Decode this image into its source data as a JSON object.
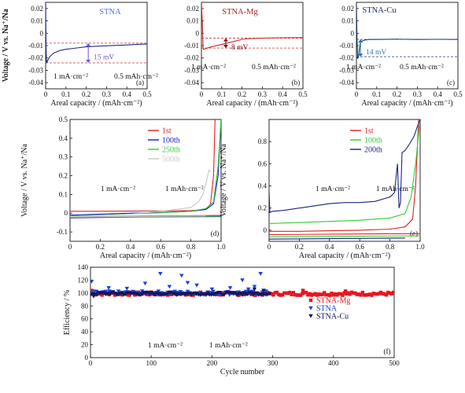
{
  "chart_data": [
    {
      "id": "a",
      "type": "line",
      "panel_label": "(a)",
      "title": "STNA",
      "xlabel": "Areal capacity / (mAh·cm⁻²)",
      "ylabel": "Voltage / V vs. Na⁺/Na",
      "xlim": [
        0,
        0.5
      ],
      "ylim": [
        -0.045,
        0.025
      ],
      "xticks": [
        "0",
        "0.1",
        "0.2",
        "0.3",
        "0.4",
        "0.5"
      ],
      "yticks": [
        "-0.04",
        "-0.03",
        "-0.02",
        "-0.01",
        "0",
        "0.01",
        "0.02"
      ],
      "condition_current": "1 mA·cm⁻²",
      "condition_capacity": "0.5 mAh·cm⁻²",
      "colors": {
        "series": "#1f2d8a",
        "title": "#5b6fd6",
        "annotation": "#6a5acd",
        "guide": "#cc3333"
      },
      "guides": [
        -0.008,
        -0.024
      ],
      "annotation": {
        "text": "15 mV",
        "x": 0.21,
        "y_top": -0.008,
        "y_bottom": -0.024
      },
      "series": [
        {
          "x": [
            0,
            0.002,
            0.004,
            0.006,
            0.01,
            0.02,
            0.04,
            0.07,
            0.1,
            0.15,
            0.2,
            0.25,
            0.3,
            0.35,
            0.4,
            0.45,
            0.5
          ],
          "y": [
            0.025,
            -0.01,
            -0.022,
            -0.024,
            -0.022,
            -0.019,
            -0.016,
            -0.014,
            -0.013,
            -0.012,
            -0.011,
            -0.0105,
            -0.0102,
            -0.0098,
            -0.0095,
            -0.009,
            -0.0088
          ]
        }
      ]
    },
    {
      "id": "b",
      "type": "line",
      "panel_label": "(b)",
      "title": "STNA-Mg",
      "xlabel": "Areal capacity / (mAh·cm⁻²)",
      "ylabel": "Voltage / V vs. Na⁺/Na",
      "xlim": [
        0,
        0.5
      ],
      "ylim": [
        -0.045,
        0.025
      ],
      "xticks": [
        "0",
        "0.1",
        "0.2",
        "0.3",
        "0.4",
        "0.5"
      ],
      "yticks": [
        "-0.04",
        "-0.03",
        "-0.02",
        "-0.01",
        "0",
        "0.01",
        "0.02"
      ],
      "condition_current": "1 mA·cm⁻²",
      "condition_capacity": "0.5 mAh·cm⁻²",
      "colors": {
        "series": "#d62728",
        "title": "#b22222",
        "annotation": "#8b0000",
        "guide": "#cc3333"
      },
      "guides": [
        -0.004,
        -0.012
      ],
      "annotation": {
        "text": "8 mV",
        "x": 0.12,
        "y_top": -0.004,
        "y_bottom": -0.012
      },
      "series": [
        {
          "x": [
            0,
            0.005,
            0.008,
            0.01,
            0.02,
            0.05,
            0.1,
            0.15,
            0.2,
            0.25,
            0.3,
            0.35,
            0.4,
            0.45,
            0.5
          ],
          "y": [
            0.025,
            0.006,
            -0.012,
            -0.013,
            -0.0125,
            -0.011,
            -0.009,
            -0.007,
            -0.005,
            -0.0042,
            -0.004,
            -0.0038,
            -0.0037,
            -0.0036,
            -0.0035
          ]
        }
      ]
    },
    {
      "id": "c",
      "type": "line",
      "panel_label": "(c)",
      "title": "STNA-Cu",
      "xlabel": "Areal capacity / (mAh·cm⁻²)",
      "ylabel": "Voltage / V vs. Na⁺/Na",
      "xlim": [
        0,
        0.5
      ],
      "ylim": [
        -0.045,
        0.025
      ],
      "xticks": [
        "0",
        "0.1",
        "0.2",
        "0.3",
        "0.4",
        "0.5"
      ],
      "yticks": [
        "-0.04",
        "-0.03",
        "-0.02",
        "-0.01",
        "0",
        "0.01",
        "0.02"
      ],
      "condition_current": "1 mA·cm⁻²",
      "condition_capacity": "0.5 mAh·cm⁻²",
      "colors": {
        "series": "#1f3a6e",
        "title": "#1a2a5e",
        "annotation": "#1f77b4",
        "guide": "#1f3a6e"
      },
      "guides": [
        -0.005,
        -0.019
      ],
      "annotation": {
        "text": "14 mV",
        "x": 0.02,
        "y_top": -0.005,
        "y_bottom": -0.019
      },
      "series": [
        {
          "x": [
            0,
            0.003,
            0.006,
            0.01,
            0.015,
            0.02,
            0.04,
            0.07,
            0.1,
            0.2,
            0.3,
            0.4,
            0.5
          ],
          "y": [
            0.025,
            -0.005,
            -0.02,
            -0.019,
            -0.012,
            -0.007,
            -0.0055,
            -0.005,
            -0.005,
            -0.0048,
            -0.005,
            -0.0049,
            -0.005
          ]
        }
      ]
    },
    {
      "id": "d",
      "type": "line",
      "panel_label": "(d)",
      "xlabel": "Areal capacity / (mAh·cm⁻²)",
      "ylabel": "Voltage / V vs. Na⁺/Na",
      "xlim": [
        0,
        1.0
      ],
      "ylim": [
        -0.15,
        0.5
      ],
      "xticks": [
        "0",
        "0.2",
        "0.4",
        "0.6",
        "0.8",
        "1.0"
      ],
      "yticks": [
        "-0.1",
        "0",
        "0.1",
        "0.2",
        "0.3",
        "0.4",
        "0.5"
      ],
      "condition_current": "1 mA·cm⁻²",
      "condition_capacity": "1 mAh·cm⁻²",
      "legend_position": "top-right",
      "series": [
        {
          "name": "1st",
          "color": "#e02020",
          "charge_x": [
            0,
            0.2,
            0.4,
            0.6,
            0.8,
            0.9,
            0.93,
            0.95,
            0.96
          ],
          "charge_y": [
            0.01,
            0.01,
            0.011,
            0.012,
            0.014,
            0.02,
            0.05,
            0.2,
            0.5
          ],
          "discharge_x": [
            0,
            0.5,
            1.0
          ],
          "discharge_y": [
            -0.02,
            -0.015,
            -0.012
          ]
        },
        {
          "name": "100th",
          "color": "#1a1ac8",
          "charge_x": [
            0,
            0.2,
            0.4,
            0.6,
            0.8,
            0.9,
            0.95,
            0.98,
            1.0
          ],
          "charge_y": [
            -0.01,
            -0.005,
            0.0,
            0.004,
            0.01,
            0.02,
            0.05,
            0.2,
            0.5
          ],
          "discharge_x": [
            0,
            0.5,
            1.0
          ],
          "discharge_y": [
            -0.025,
            -0.02,
            -0.018
          ]
        },
        {
          "name": "250th",
          "color": "#33cc33",
          "charge_x": [
            0,
            0.2,
            0.4,
            0.6,
            0.8,
            0.9,
            0.95,
            0.98,
            1.0
          ],
          "charge_y": [
            -0.015,
            -0.01,
            -0.004,
            0.002,
            0.01,
            0.025,
            0.06,
            0.25,
            0.5
          ],
          "discharge_x": [
            0,
            0.5,
            1.0
          ],
          "discharge_y": [
            -0.022,
            -0.018,
            -0.016
          ]
        },
        {
          "name": "500th",
          "color": "#c8c8c8",
          "charge_x": [
            0,
            0.2,
            0.4,
            0.6,
            0.8,
            0.85,
            0.88,
            0.9,
            0.92,
            0.93
          ],
          "charge_y": [
            -0.02,
            -0.012,
            -0.005,
            0.01,
            0.03,
            0.06,
            0.1,
            0.16,
            0.23,
            0.22
          ],
          "discharge_x": [
            0,
            0.5,
            0.9
          ],
          "discharge_y": [
            -0.02,
            -0.017,
            -0.015
          ]
        }
      ]
    },
    {
      "id": "e",
      "type": "line",
      "panel_label": "(e)",
      "xlabel": "Areal capacity / (mAh·cm⁻²)",
      "ylabel": "Voltage / V vs. Na⁺/Na",
      "xlim": [
        0,
        1.0
      ],
      "ylim": [
        -0.1,
        1.0
      ],
      "xticks": [
        "0",
        "0.2",
        "0.4",
        "0.6",
        "0.8",
        "1.0"
      ],
      "yticks": [
        "0",
        "0.2",
        "0.4",
        "0.6",
        "0.8"
      ],
      "condition_current": "1 mA·cm⁻²",
      "condition_capacity": "1 mAh·cm⁻²",
      "legend_position": "top-right",
      "series": [
        {
          "name": "1st",
          "color": "#e02020",
          "charge_x": [
            0,
            0.2,
            0.4,
            0.6,
            0.8,
            0.9,
            0.95,
            0.97,
            0.99
          ],
          "charge_y": [
            -0.01,
            -0.01,
            -0.005,
            0.0,
            0.01,
            0.03,
            0.1,
            0.4,
            1.0
          ],
          "discharge_x": [
            0,
            0.5,
            1.0
          ],
          "discharge_y": [
            -0.04,
            -0.035,
            -0.03
          ]
        },
        {
          "name": "100th",
          "color": "#33cc33",
          "charge_x": [
            0,
            0.2,
            0.4,
            0.6,
            0.8,
            0.9,
            0.94,
            0.97,
            1.0
          ],
          "charge_y": [
            0.06,
            0.07,
            0.08,
            0.09,
            0.11,
            0.15,
            0.3,
            0.6,
            1.0
          ],
          "discharge_x": [
            0,
            0.5,
            1.0
          ],
          "discharge_y": [
            -0.06,
            -0.055,
            -0.05
          ]
        },
        {
          "name": "200th",
          "color": "#1a237e",
          "charge_x": [
            0,
            0.005,
            0.02,
            0.1,
            0.2,
            0.3,
            0.4,
            0.5,
            0.6,
            0.7,
            0.8,
            0.83,
            0.85,
            0.86,
            0.87,
            0.88,
            0.9,
            0.93,
            0.96,
            0.98,
            1.0
          ],
          "charge_y": [
            0.35,
            0.16,
            0.17,
            0.18,
            0.2,
            0.22,
            0.24,
            0.25,
            0.25,
            0.26,
            0.3,
            0.34,
            0.6,
            0.2,
            0.25,
            0.7,
            0.72,
            0.78,
            0.85,
            0.93,
            1.0
          ],
          "discharge_x": [
            0,
            0.5,
            0.9
          ],
          "discharge_y": [
            -0.08,
            -0.075,
            -0.07
          ]
        }
      ]
    },
    {
      "id": "f",
      "type": "scatter",
      "panel_label": "(f)",
      "xlabel": "Cycle number",
      "ylabel": "Efficiency / %",
      "xlim": [
        0,
        500
      ],
      "ylim": [
        0,
        140
      ],
      "xticks": [
        "0",
        "100",
        "200",
        "300",
        "400",
        "500"
      ],
      "yticks": [
        "0",
        "20",
        "40",
        "60",
        "80",
        "100",
        "120",
        "140"
      ],
      "condition_current": "1 mA·cm⁻²",
      "condition_capacity": "1 mAh·cm⁻²",
      "legend_position": "right-center",
      "series": [
        {
          "name": "STNA-Mg",
          "marker": "square",
          "color": "#e8141e",
          "x_start": 1,
          "x_end": 500,
          "step": 3,
          "base": 99.0,
          "spread": 2.5,
          "outliers": [
            {
              "x": 2,
              "y": 104
            },
            {
              "x": 350,
              "y": 104
            },
            {
              "x": 420,
              "y": 103
            }
          ]
        },
        {
          "name": "STNA",
          "marker": "triangle-down",
          "color": "#1f3fd8",
          "x_start": 1,
          "x_end": 290,
          "step": 3,
          "base": 100.0,
          "spread": 3.0,
          "outliers": [
            {
              "x": 2,
              "y": 118
            },
            {
              "x": 30,
              "y": 108
            },
            {
              "x": 60,
              "y": 107
            },
            {
              "x": 90,
              "y": 115
            },
            {
              "x": 115,
              "y": 130
            },
            {
              "x": 130,
              "y": 110
            },
            {
              "x": 150,
              "y": 127
            },
            {
              "x": 160,
              "y": 116
            },
            {
              "x": 175,
              "y": 112
            },
            {
              "x": 200,
              "y": 106
            },
            {
              "x": 230,
              "y": 108
            },
            {
              "x": 250,
              "y": 120
            },
            {
              "x": 260,
              "y": 106
            },
            {
              "x": 270,
              "y": 110
            },
            {
              "x": 280,
              "y": 130
            }
          ]
        },
        {
          "name": "STNA-Cu",
          "marker": "triangle-down",
          "color": "#101858",
          "x_start": 1,
          "x_end": 295,
          "step": 3,
          "base": 99.0,
          "spread": 2.0,
          "outliers": [
            {
              "x": 5,
              "y": 95
            },
            {
              "x": 270,
              "y": 106
            },
            {
              "x": 285,
              "y": 104
            }
          ]
        }
      ]
    }
  ]
}
